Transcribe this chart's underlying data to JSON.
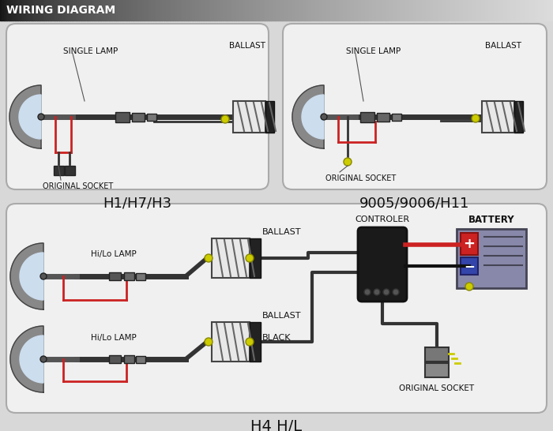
{
  "title": "WIRING DIAGRAM",
  "bg_color": "#d8d8d8",
  "header_text_color": "#ffffff",
  "top_left_title": "H1/H7/H3",
  "top_right_title": "9005/9006/H11",
  "bottom_title": "H4 H/L",
  "label_single_lamp": "SINGLE LAMP",
  "label_original_socket": "ORIGINAL SOCKET",
  "label_ballast": "BALLAST",
  "label_hilo_lamp1": "Hi/Lo LAMP",
  "label_hilo_lamp2": "Hi/Lo LAMP",
  "label_ballast1": "BALLAST",
  "label_ballast2": "BALLAST",
  "label_black": "BLACK",
  "label_controler": "CONTROLER",
  "label_battery": "BATTERY",
  "label_socket": "ORIGINAL SOCKET"
}
